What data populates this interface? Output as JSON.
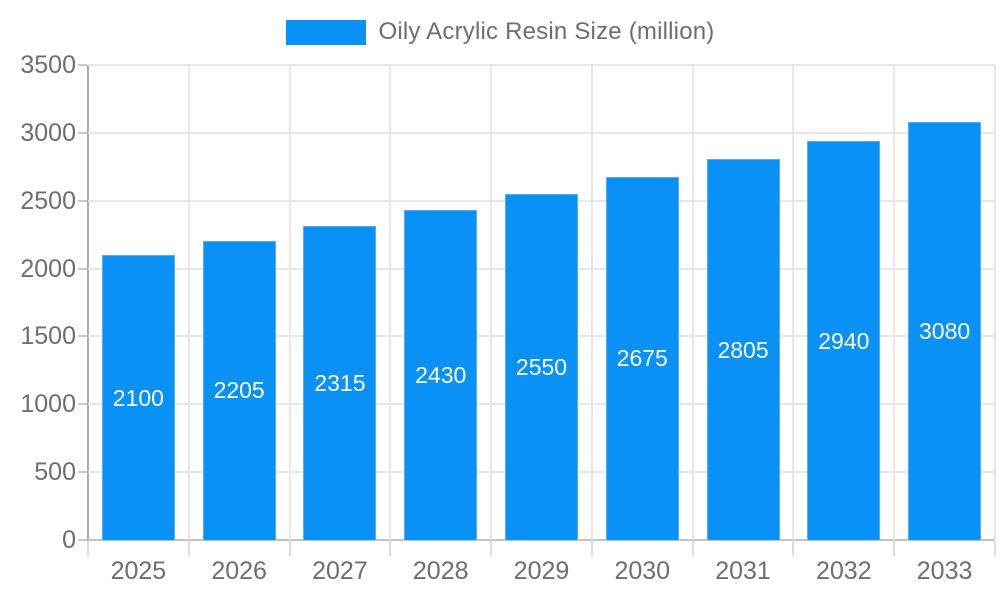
{
  "chart_data": {
    "type": "bar",
    "title": "Oily Acrylic Resin Size (million)",
    "categories": [
      "2025",
      "2026",
      "2027",
      "2028",
      "2029",
      "2030",
      "2031",
      "2032",
      "2033"
    ],
    "values": [
      2100,
      2205,
      2315,
      2430,
      2550,
      2675,
      2805,
      2940,
      3080
    ],
    "xlabel": "",
    "ylabel": "",
    "ylim": [
      0,
      3500
    ],
    "yticks": [
      0,
      500,
      1000,
      1500,
      2000,
      2500,
      3000,
      3500
    ],
    "grid": true,
    "legend_position": "top",
    "value_labels": "inside-center"
  },
  "colors": {
    "bar_fill": "#0991f5",
    "bar_border": "#59aaf6",
    "grid": "#e7e7e7",
    "zero_line": "#c2c2c2",
    "axis_line": "#ababab",
    "tick": "#c9c9c9",
    "axis_text": "#6e6e6e",
    "bar_label_text": "#ffffff",
    "background": "#ffffff"
  }
}
